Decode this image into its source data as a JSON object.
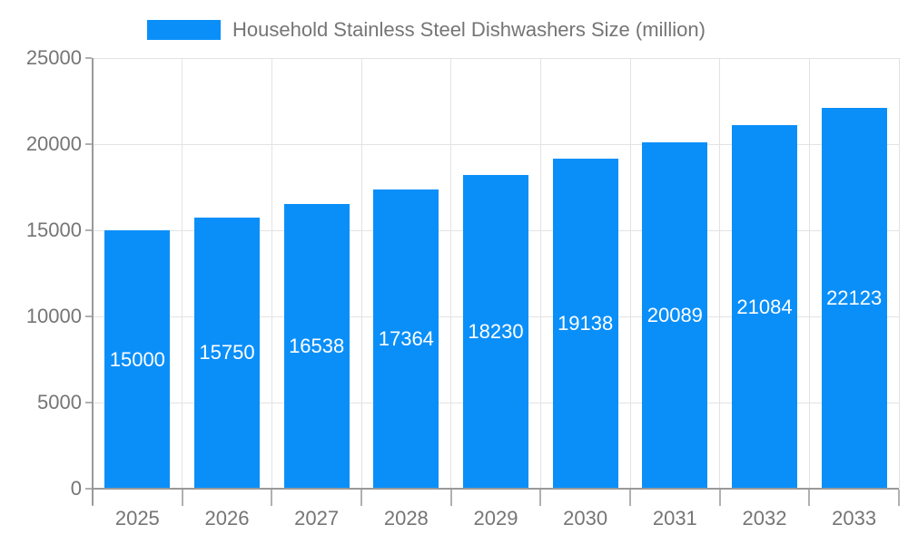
{
  "legend": {
    "label": "Household Stainless Steel Dishwashers Size (million)"
  },
  "chart_data": {
    "type": "bar",
    "title": "",
    "legend": "Household Stainless Steel Dishwashers Size (million)",
    "legend_position": "top",
    "categories": [
      "2025",
      "2026",
      "2027",
      "2028",
      "2029",
      "2030",
      "2031",
      "2032",
      "2033"
    ],
    "values": [
      15000,
      15750,
      16538,
      17364,
      18230,
      19138,
      20089,
      21084,
      22123
    ],
    "xlabel": "",
    "ylabel": "",
    "ylim": [
      0,
      25000
    ],
    "yticks": [
      0,
      5000,
      10000,
      15000,
      20000,
      25000
    ],
    "grid": true,
    "value_labels": "inside-center-white",
    "colors": {
      "bar": "#0A8FF9",
      "axis_text": "#757575",
      "grid_line": "#e3e3e3",
      "axis_line": "#999999",
      "tick_mark": "#b0b0b0",
      "value_label": "#ffffff",
      "background": "#ffffff"
    }
  }
}
